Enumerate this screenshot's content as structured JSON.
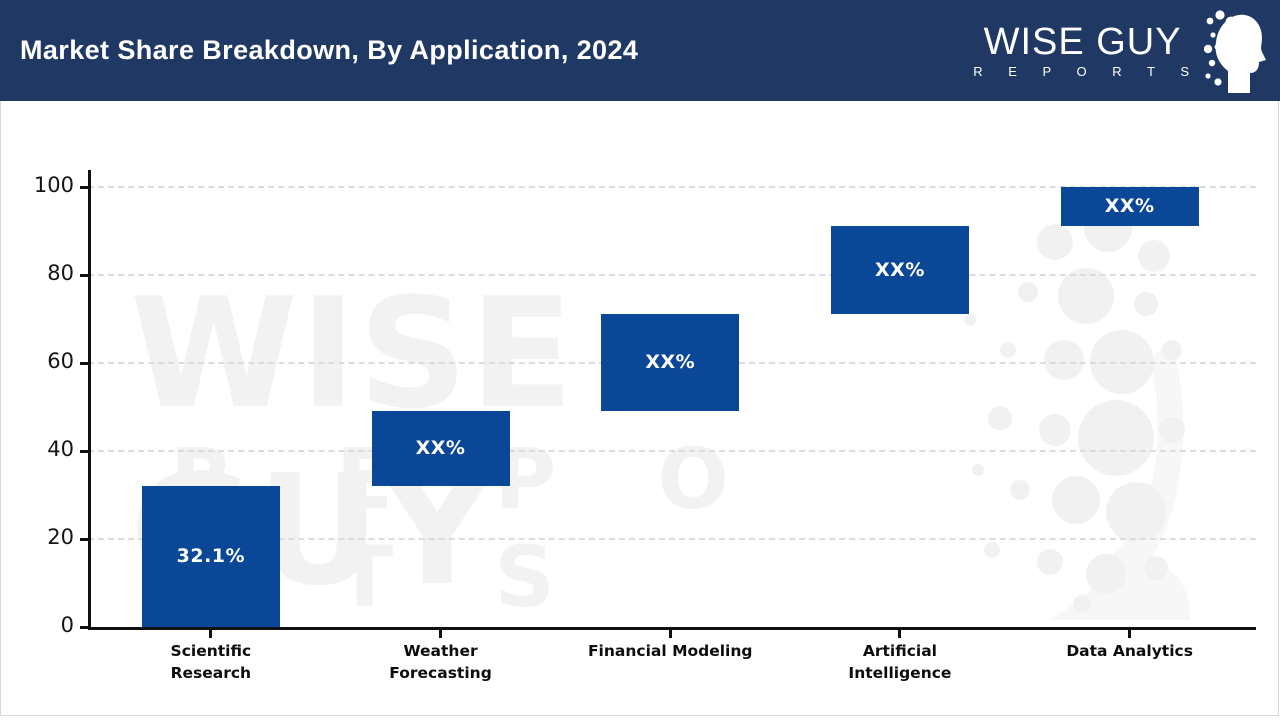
{
  "header": {
    "title": "Market Share Breakdown, By Application, 2024",
    "logo": {
      "line1": "WISE GUY",
      "line2": "R E P O R T S"
    }
  },
  "watermark": {
    "line1": "WISE GUY",
    "line2": "R E P O R T S"
  },
  "colors": {
    "header_bg": "#203864",
    "bar": "#0a4796",
    "grid": "#dcdcdc",
    "axis": "#111111",
    "watermark": "#f2f2f2"
  },
  "chart_data": {
    "type": "bar",
    "subtype": "waterfall",
    "title": "Market Share Breakdown, By Application, 2024",
    "categories": [
      "Scientific\nResearch",
      "Weather\nForecasting",
      "Financial Modeling",
      "Artificial\nIntelligence",
      "Data Analytics"
    ],
    "segments": [
      {
        "category": "Scientific Research",
        "start": 0,
        "end": 32.1,
        "label": "32.1%"
      },
      {
        "category": "Weather Forecasting",
        "start": 32.1,
        "end": 49.2,
        "label": "XX%"
      },
      {
        "category": "Financial Modeling",
        "start": 49.2,
        "end": 71.2,
        "label": "XX%"
      },
      {
        "category": "Artificial Intelligence",
        "start": 71.2,
        "end": 91.2,
        "label": "XX%"
      },
      {
        "category": "Data Analytics",
        "start": 91.2,
        "end": 100,
        "label": "XX%"
      }
    ],
    "xlabel": "",
    "ylabel": "",
    "ylim": [
      0,
      100
    ],
    "yticks": [
      0,
      20,
      40,
      60,
      80,
      100
    ],
    "grid": "dashed-horizontal",
    "legend": "none",
    "bar_color": "#0a4796",
    "label_color": "#ffffff"
  }
}
